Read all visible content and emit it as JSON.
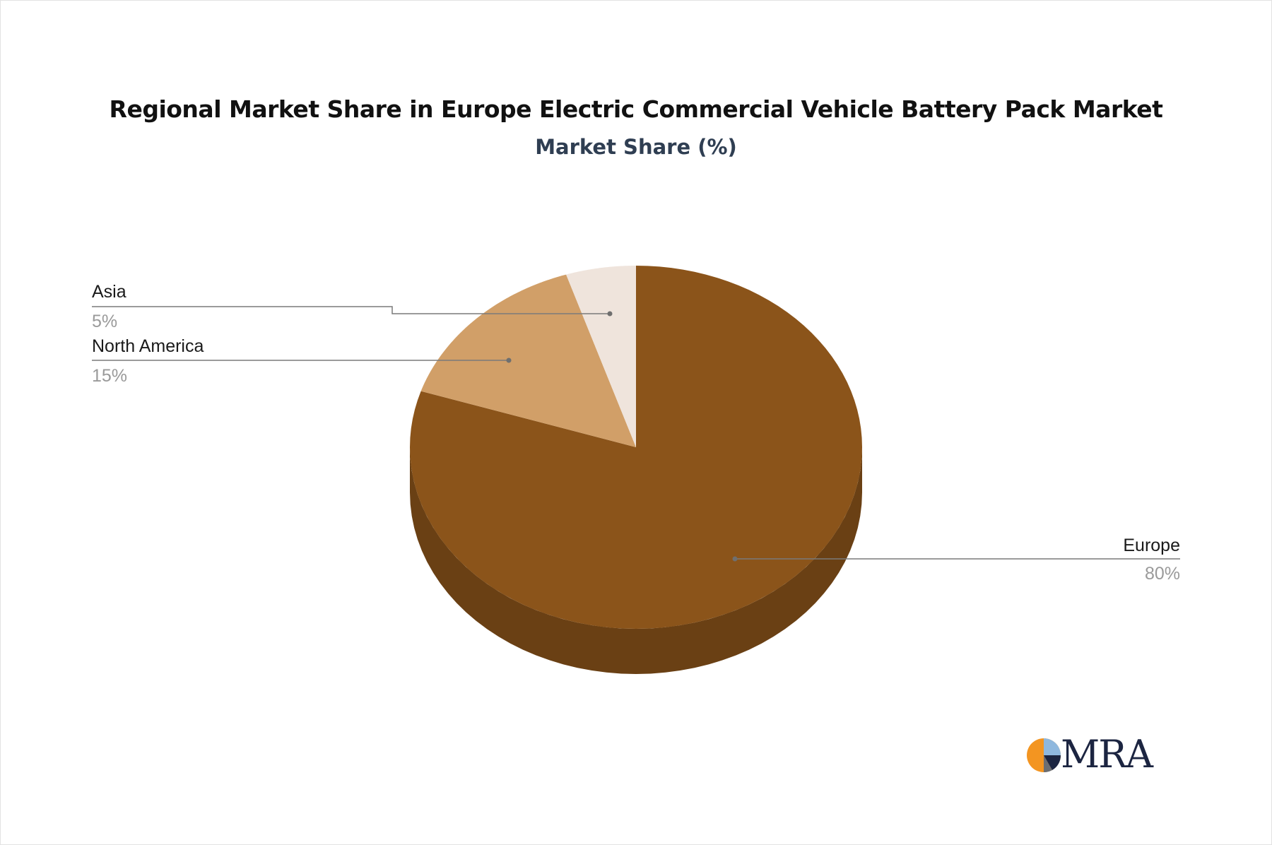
{
  "chart_data": {
    "type": "pie",
    "title": "Regional Market Share in Europe Electric Commercial Vehicle Battery Pack Market",
    "subtitle": "Market Share (%)",
    "slices": [
      {
        "label": "Europe",
        "value": 80,
        "display": "80%",
        "color": "#8b541a",
        "side_color": "#6a4014"
      },
      {
        "label": "North America",
        "value": 15,
        "display": "15%",
        "color": "#d19f68",
        "side_color": "#a87c4e"
      },
      {
        "label": "Asia",
        "value": 5,
        "display": "5%",
        "color": "#efe4dc",
        "side_color": "#c9bdb3"
      }
    ]
  },
  "logo": {
    "text": "MRA",
    "colors": [
      "#f39521",
      "#8fb8de",
      "#1c2541",
      "#6b6e73"
    ]
  }
}
